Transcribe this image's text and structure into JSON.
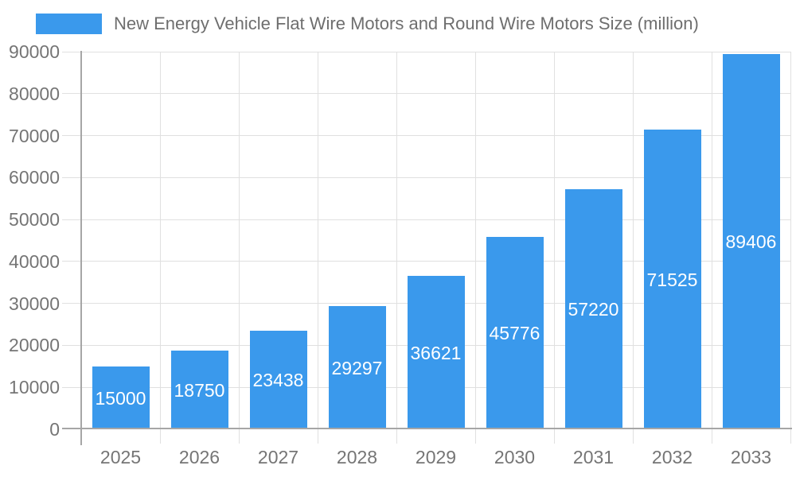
{
  "legend": {
    "label": "New Energy Vehicle Flat Wire Motors and Round Wire Motors Size (million)"
  },
  "chart_data": {
    "type": "bar",
    "title": "New Energy Vehicle Flat Wire Motors and Round Wire Motors Size (million)",
    "categories": [
      "2025",
      "2026",
      "2027",
      "2028",
      "2029",
      "2030",
      "2031",
      "2032",
      "2033"
    ],
    "values": [
      15000,
      18750,
      23438,
      29297,
      36621,
      45776,
      57220,
      71525,
      89406
    ],
    "bar_value_labels": [
      "15000",
      "18750",
      "23438",
      "29297",
      "36621",
      "45776",
      "57220",
      "71525",
      "89406"
    ],
    "ytick_labels": [
      "0",
      "10000",
      "20000",
      "30000",
      "40000",
      "50000",
      "60000",
      "70000",
      "80000",
      "90000"
    ],
    "xlabel": "",
    "ylabel": "",
    "ylim": [
      0,
      90000
    ],
    "ytick_step": 10000,
    "grid": true,
    "legend_position": "top-left",
    "colors": {
      "bar": "#3a99ec",
      "bar_label": "#ffffff",
      "axis_text": "#757575",
      "legend_text": "#6e6e6e",
      "axis_line": "#a6a6a6",
      "grid_line": "#e0e0e0",
      "background": "#ffffff"
    }
  }
}
